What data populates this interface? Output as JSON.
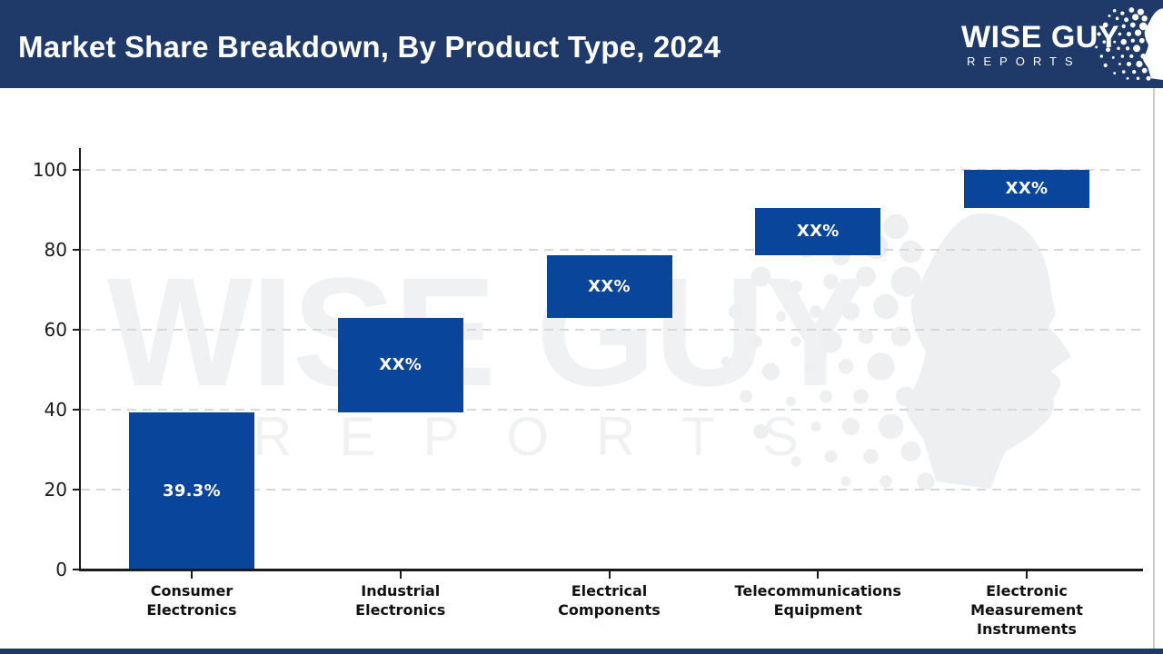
{
  "header": {
    "title": "Market Share Breakdown, By Product Type, 2024",
    "logo_line1": "WISE GUY",
    "logo_line2": "REPORTS"
  },
  "watermark": {
    "line1": "WISE GUY",
    "line2": "REPORTS"
  },
  "chart_data": {
    "type": "bar",
    "subtype": "waterfall",
    "title": "Market Share Breakdown, By Product Type, 2024",
    "categories": [
      "Consumer\nElectronics",
      "Industrial\nElectronics",
      "Electrical\nComponents",
      "Telecommunications\nEquipment",
      "Electronic\nMeasurement\nInstruments"
    ],
    "segments": [
      {
        "category": "Consumer Electronics",
        "label": "39.3%",
        "start": 0,
        "end": 39.3,
        "value": 39.3
      },
      {
        "category": "Industrial Electronics",
        "label": "XX%",
        "start": 39.3,
        "end": 63.0,
        "value": 23.7
      },
      {
        "category": "Electrical Components",
        "label": "XX%",
        "start": 63.0,
        "end": 78.7,
        "value": 15.7
      },
      {
        "category": "Telecommunications Equipment",
        "label": "XX%",
        "start": 78.7,
        "end": 90.5,
        "value": 11.8
      },
      {
        "category": "Electronic Measurement Instruments",
        "label": "XX%",
        "start": 90.5,
        "end": 100.0,
        "value": 9.5
      }
    ],
    "xlabel": "",
    "ylabel": "",
    "yticks": [
      0,
      20,
      40,
      60,
      80,
      100
    ],
    "ylim": [
      0,
      105
    ],
    "grid": "horizontal-dashed",
    "legend": "none",
    "bar_color": "#0a459c",
    "bar_label_color": "#ffffff",
    "axis_color": "#1b1b1b",
    "grid_color": "#d8d8d8"
  },
  "colors": {
    "header_bg": "#1f3a68",
    "footer_bg": "#1f3a68",
    "watermark": "#f0f1f3",
    "page_bg": "#ffffff"
  }
}
